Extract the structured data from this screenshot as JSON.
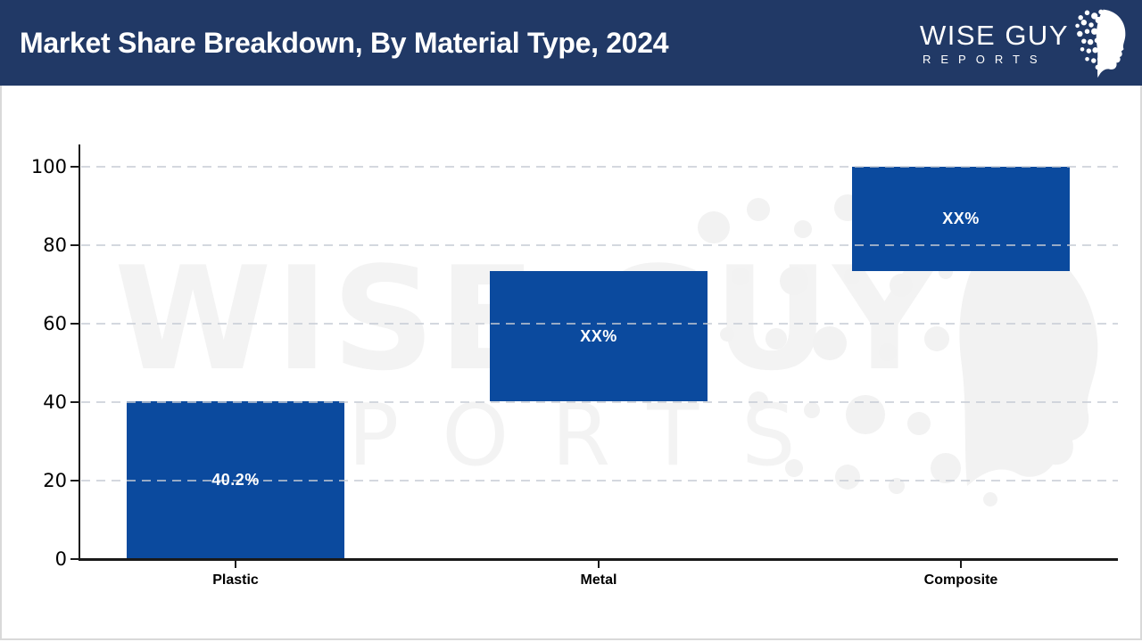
{
  "header": {
    "title": "Market Share Breakdown, By Material Type, 2024",
    "logo": {
      "name": "WISE GUY",
      "sub": "REPORTS"
    }
  },
  "watermark": {
    "word": "WISE GUY",
    "sub": "REPORTS"
  },
  "chart_data": {
    "type": "bar",
    "variant": "waterfall",
    "title": "Market Share Breakdown, By Material Type, 2024",
    "categories": [
      "Plastic",
      "Metal",
      "Composite"
    ],
    "segments": [
      {
        "category": "Plastic",
        "start": 0,
        "end": 40.2,
        "label": "40.2%"
      },
      {
        "category": "Metal",
        "start": 40.2,
        "end": 73.4,
        "label": "XX%"
      },
      {
        "category": "Composite",
        "start": 73.4,
        "end": 100,
        "label": "XX%"
      }
    ],
    "yticks": [
      0,
      20,
      40,
      60,
      80,
      100
    ],
    "ylim": [
      0,
      105
    ],
    "xlabel": "",
    "ylabel": "",
    "grid": {
      "axis": "y",
      "style": "dashed"
    },
    "legend": "none"
  },
  "colors": {
    "header_bg": "#213966",
    "bar": "#0B4A9E",
    "bar_label": "#FFFFFF",
    "watermark": "#F3F3F3",
    "grid": "#D9D9D9",
    "axis": "#1A1A1A"
  }
}
